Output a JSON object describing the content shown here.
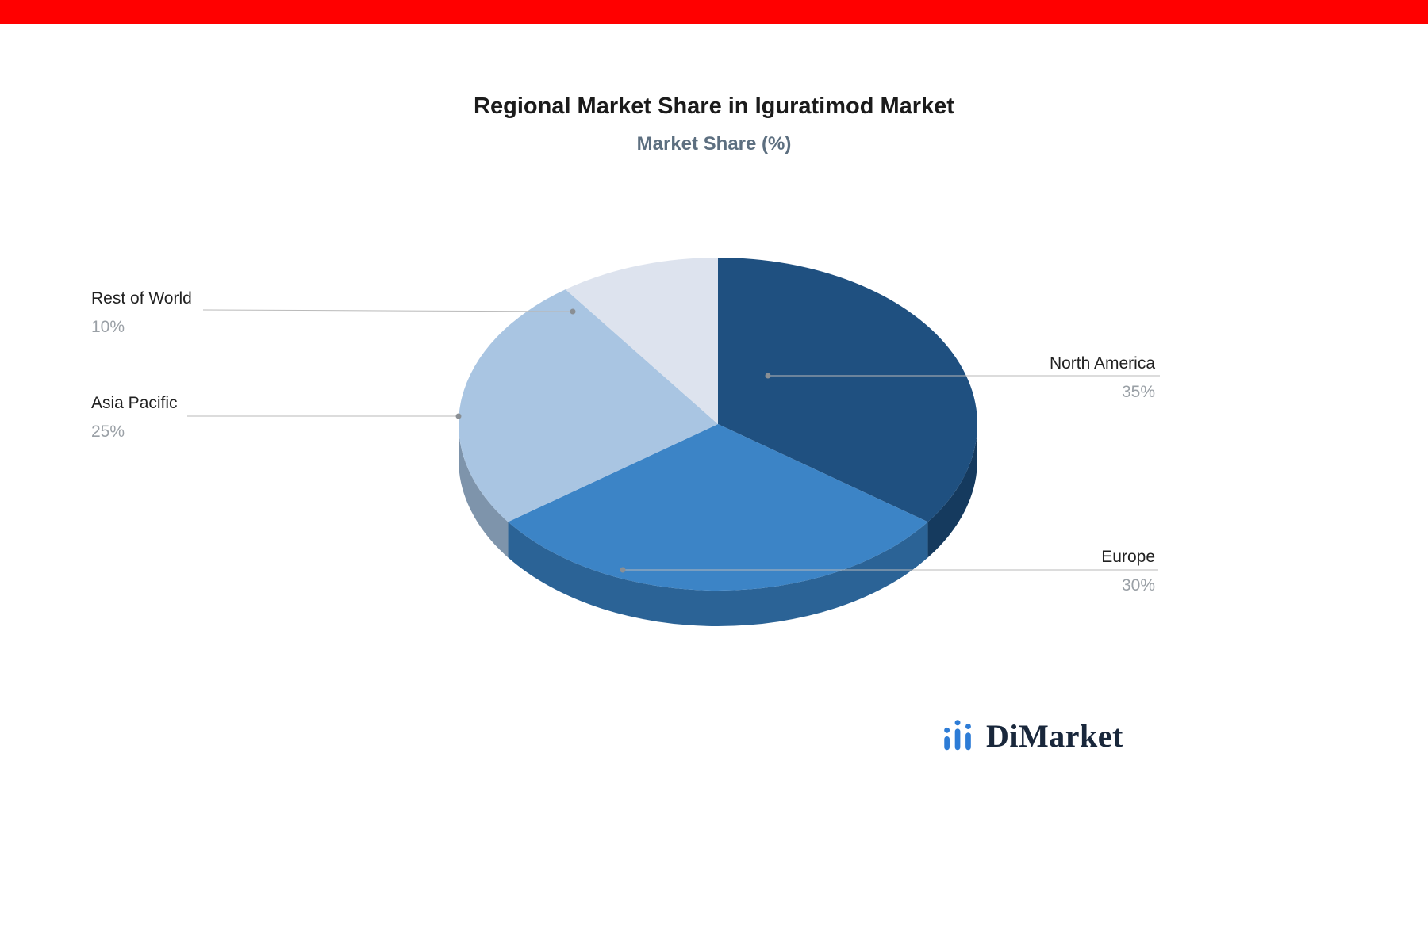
{
  "page": {
    "top_bar_color": "#ff0000",
    "background": "#ffffff"
  },
  "header": {
    "title": "Regional Market Share in Iguratimod Market",
    "subtitle": "Market Share (%)"
  },
  "chart_data": {
    "type": "pie",
    "title": "Regional Market Share in Iguratimod Market",
    "subtitle": "Market Share (%)",
    "unit": "%",
    "style": "3d",
    "start_angle_deg": 0,
    "clockwise": true,
    "legend_position": "callout-labels",
    "slices": [
      {
        "label": "North America",
        "value": 35,
        "display": "35%",
        "color": "#1f5080",
        "side_color": "#153a5e",
        "label_side": "right"
      },
      {
        "label": "Europe",
        "value": 30,
        "display": "30%",
        "color": "#3c84c6",
        "side_color": "#2b6396",
        "label_side": "right"
      },
      {
        "label": "Asia Pacific",
        "value": 25,
        "display": "25%",
        "color": "#a9c5e2",
        "side_color": "#7e94ab",
        "label_side": "left"
      },
      {
        "label": "Rest of World",
        "value": 10,
        "display": "10%",
        "color": "#dde3ee",
        "side_color": "#a6acb5",
        "label_side": "left"
      }
    ]
  },
  "branding": {
    "logo_text": "DiMarket",
    "logo_icon": "bar-chart-icon",
    "logo_icon_color": "#2d7cd6",
    "logo_text_color": "#19273b"
  }
}
